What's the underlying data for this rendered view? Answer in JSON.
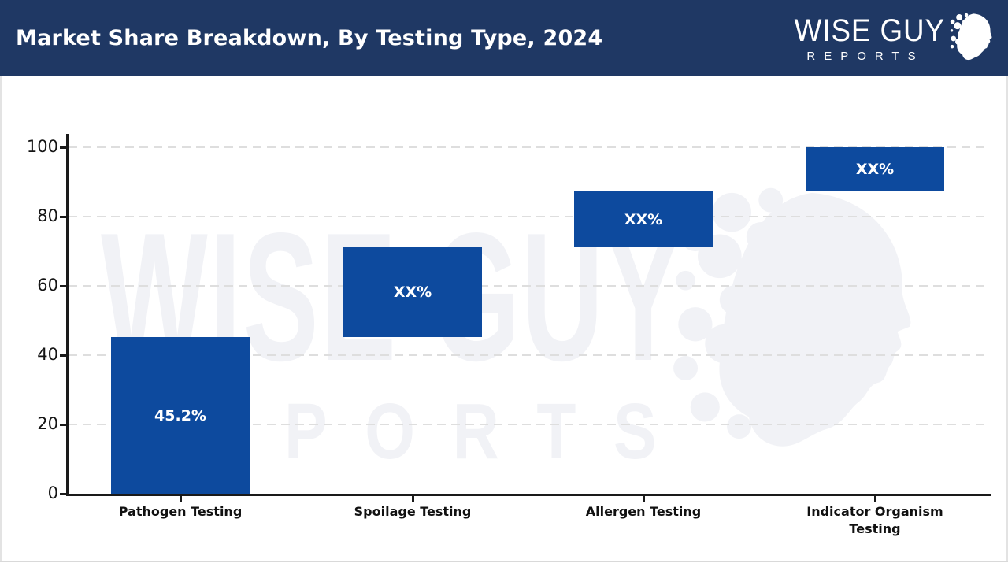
{
  "header": {
    "title": "Market Share Breakdown, By Testing Type, 2024",
    "logo": {
      "line1": "WISE GUY",
      "line2": "REPORTS"
    }
  },
  "watermark": {
    "line1": "WISE GUY",
    "line2": "REPORTS"
  },
  "colors": {
    "header_bg": "#1f3864",
    "bar_fill": "#0d4a9e",
    "bar_label_text": "#ffffff",
    "axis": "#1a1a1a",
    "gridline": "#dedede",
    "watermark": "#f1f2f6",
    "bottom_divider": "#d9d9d9"
  },
  "chart_data": {
    "type": "bar",
    "subtype": "waterfall",
    "title": "Market Share Breakdown, By Testing Type, 2024",
    "xlabel": "",
    "ylabel": "",
    "categories": [
      "Pathogen Testing",
      "Spoilage Testing",
      "Allergen Testing",
      "Indicator Organism Testing"
    ],
    "segments": [
      {
        "category": "Pathogen Testing",
        "start": 0,
        "end": 45.2,
        "value": 45.2,
        "label": "45.2%"
      },
      {
        "category": "Spoilage Testing",
        "start": 45.2,
        "end": 71.1,
        "value": 25.9,
        "label": "XX%"
      },
      {
        "category": "Allergen Testing",
        "start": 71.1,
        "end": 87.2,
        "value": 16.1,
        "label": "XX%"
      },
      {
        "category": "Indicator Organism Testing",
        "start": 87.2,
        "end": 100,
        "value": 12.8,
        "label": "XX%"
      }
    ],
    "yticks": [
      0,
      20,
      40,
      60,
      80,
      100
    ],
    "ylim": [
      0,
      104
    ],
    "grid": "horizontal-dashed",
    "legend": "none",
    "units": "percent"
  }
}
